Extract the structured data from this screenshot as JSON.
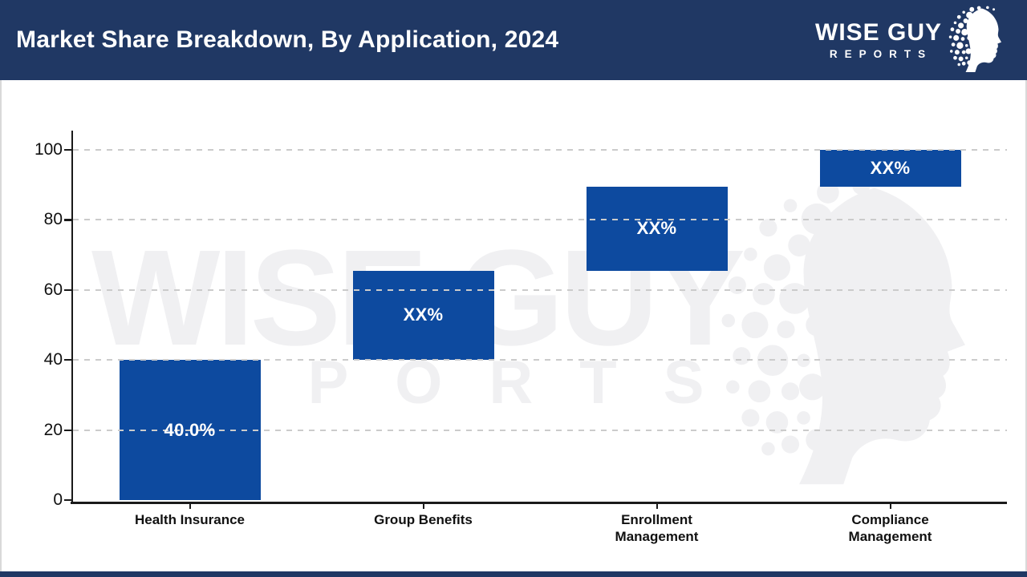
{
  "header": {
    "title": "Market Share Breakdown, By Application, 2024",
    "logo": {
      "name": "WISE GUY",
      "sub": "REPORTS"
    }
  },
  "watermark": {
    "line1": "WISE GUY",
    "line2": "REPORTS"
  },
  "colors": {
    "header_bg": "#203864",
    "footer_bg": "#203864",
    "bar": "#0d4a9f",
    "bar_label_text": "#ffffff",
    "grid": "#cbcbcb",
    "axis": "#1a1a1a",
    "tick_text": "#111111",
    "watermark": "#f0f0f2"
  },
  "chart_data": {
    "type": "bar",
    "subtype": "waterfall",
    "title": "Market Share Breakdown, By Application, 2024",
    "categories": [
      "Health Insurance",
      "Group Benefits",
      "Enrollment Management",
      "Compliance Management"
    ],
    "category_lines": [
      [
        "Health Insurance"
      ],
      [
        "Group Benefits"
      ],
      [
        "Enrollment",
        "Management"
      ],
      [
        "Compliance",
        "Management"
      ]
    ],
    "segments": [
      {
        "category": "Health Insurance",
        "start": 0,
        "end": 40,
        "value": 40,
        "label": "40.0%"
      },
      {
        "category": "Group Benefits",
        "start": 40,
        "end": 65.5,
        "value": 25.5,
        "label": "XX%"
      },
      {
        "category": "Enrollment Management",
        "start": 65.5,
        "end": 89.5,
        "value": 24,
        "label": "XX%"
      },
      {
        "category": "Compliance Management",
        "start": 89.5,
        "end": 100,
        "value": 10.5,
        "label": "XX%"
      }
    ],
    "xlabel": "",
    "ylabel": "",
    "ylim": [
      0,
      100
    ],
    "yticks": [
      0,
      20,
      40,
      60,
      80,
      100
    ],
    "grid": "horizontal-dashed",
    "legend": "none"
  }
}
